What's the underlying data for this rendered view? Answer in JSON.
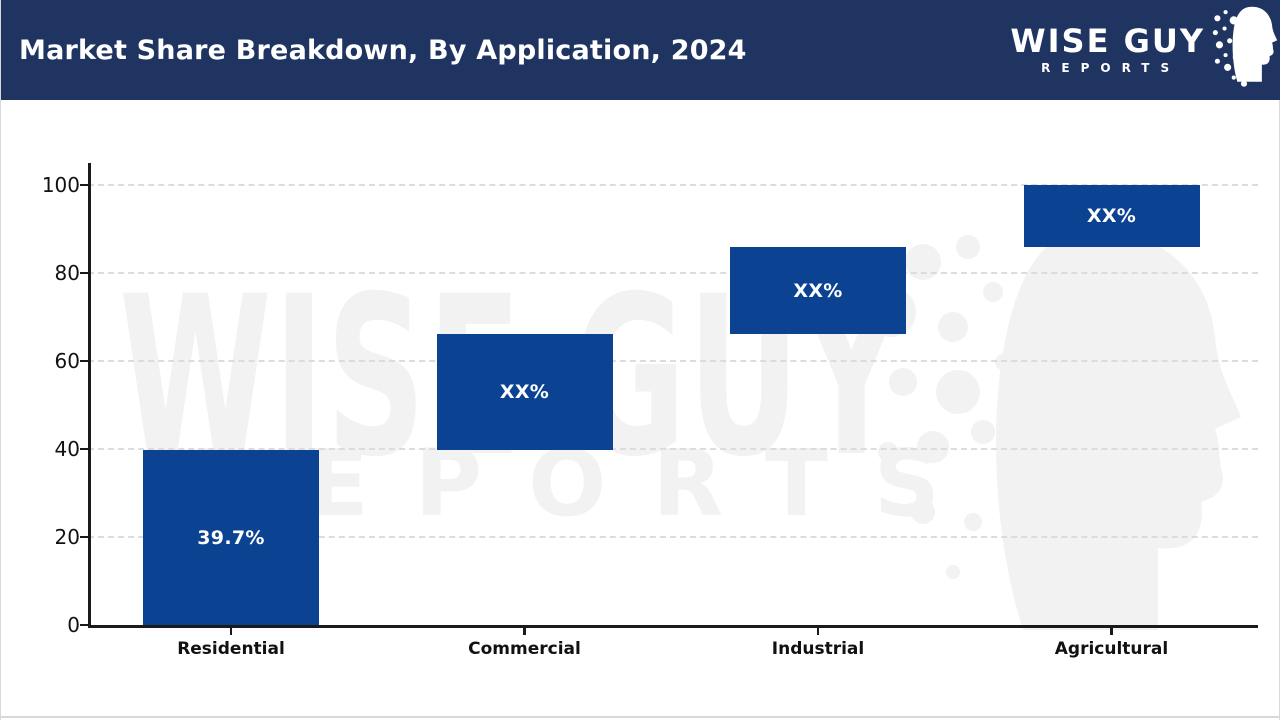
{
  "header": {
    "title": "Market Share Breakdown, By Application, 2024",
    "logo": {
      "line1": "WISE GUY",
      "line2": "REPORTS",
      "head_icon": "dotted-face-profile"
    }
  },
  "watermark": {
    "line1": "WISE GUY",
    "line2": "REPORTS",
    "face_icon": "dotted-face-profile"
  },
  "colors": {
    "header_bg": "#1f3460",
    "bar_blue": "#0b4291",
    "grid_gray": "#dcdcdc",
    "axis_black": "#1a1a1a",
    "watermark_gray": "#f2f2f2",
    "label_white": "#ffffff"
  },
  "chart_data": {
    "type": "bar",
    "subtype": "waterfall",
    "title": "Market Share Breakdown, By Application, 2024",
    "categories": [
      "Residential",
      "Commercial",
      "Industrial",
      "Agricultural"
    ],
    "bars": [
      {
        "category": "Residential",
        "start": 0,
        "end": 39.7,
        "value": 39.7,
        "label": "39.7%"
      },
      {
        "category": "Commercial",
        "start": 39.7,
        "end": 66.1,
        "value": 26.4,
        "label": "XX%"
      },
      {
        "category": "Industrial",
        "start": 66.1,
        "end": 85.8,
        "value": 19.7,
        "label": "XX%"
      },
      {
        "category": "Agricultural",
        "start": 85.8,
        "end": 100,
        "value": 14.2,
        "label": "XX%"
      }
    ],
    "xlabel": "",
    "ylabel": "",
    "yticks": [
      0,
      20,
      40,
      60,
      80,
      100
    ],
    "ylim": [
      0,
      105
    ],
    "grid": "horizontal-dashed",
    "legend": "none",
    "bar_color": "#0b4291",
    "bar_label_color": "#ffffff"
  }
}
